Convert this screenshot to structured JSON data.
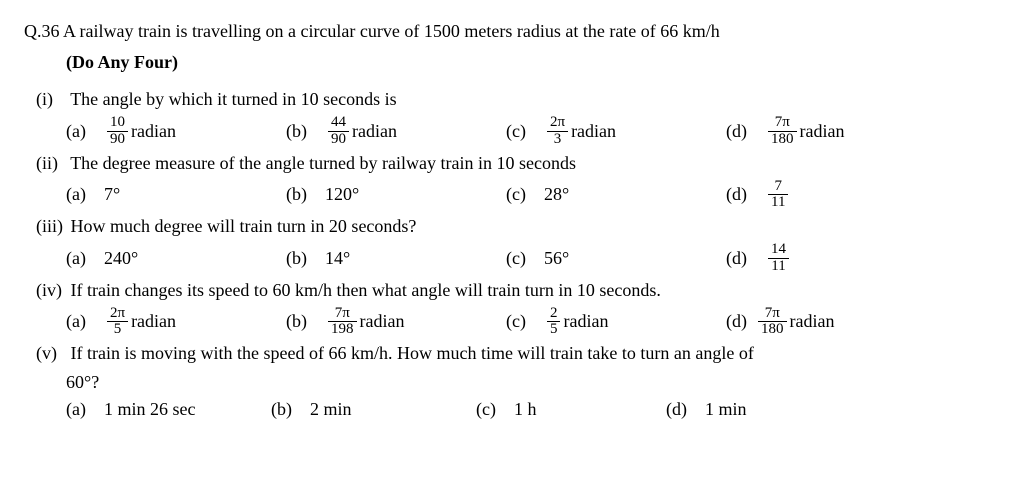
{
  "header": {
    "qnum": "Q.36",
    "text": "A railway train is travelling on a circular curve of 1500 meters radius at the rate of 66 km/h",
    "doany": "(Do Any Four)"
  },
  "parts": {
    "i": {
      "label": "(i)",
      "text": "The angle by which it turned in 10 seconds is",
      "opts": {
        "a": {
          "label": "(a)",
          "num": "10",
          "den": "90",
          "suffix": "radian"
        },
        "b": {
          "label": "(b)",
          "num": "44",
          "den": "90",
          "suffix": "radian"
        },
        "c": {
          "label": "(c)",
          "num": "2π",
          "den": "3",
          "suffix": "radian"
        },
        "d": {
          "label": "(d)",
          "num": "7π",
          "den": "180",
          "suffix": "radian"
        }
      }
    },
    "ii": {
      "label": "(ii)",
      "text": "The degree measure of the angle turned by railway train in 10 seconds",
      "opts": {
        "a": {
          "label": "(a)",
          "val": "7°"
        },
        "b": {
          "label": "(b)",
          "val": "120°"
        },
        "c": {
          "label": "(c)",
          "val": "28°"
        },
        "d": {
          "label": "(d)",
          "num": "7",
          "den": "11"
        }
      }
    },
    "iii": {
      "label": "(iii)",
      "text": "How much degree will train turn in 20 seconds?",
      "opts": {
        "a": {
          "label": "(a)",
          "val": "240°"
        },
        "b": {
          "label": "(b)",
          "val": "14°"
        },
        "c": {
          "label": "(c)",
          "val": "56°"
        },
        "d": {
          "label": "(d)",
          "num": "14",
          "den": "11"
        }
      }
    },
    "iv": {
      "label": "(iv)",
      "text": "If train changes its speed to 60 km/h then what angle will train turn in 10 seconds.",
      "opts": {
        "a": {
          "label": "(a)",
          "num": "2π",
          "den": "5",
          "suffix": "radian"
        },
        "b": {
          "label": "(b)",
          "num": "7π",
          "den": "198",
          "suffix": "radian"
        },
        "c": {
          "label": "(c)",
          "num": "2",
          "den": "5",
          "suffix": "radian"
        },
        "d": {
          "label": "(d)",
          "num": "7π",
          "den": "180",
          "suffix": "radian"
        }
      }
    },
    "v": {
      "label": "(v)",
      "text": "If train is moving with the speed of 66 km/h. How much time will train take to turn an angle of",
      "text2": "60°?",
      "opts": {
        "a": {
          "label": "(a)",
          "val": "1 min 26 sec"
        },
        "b": {
          "label": "(b)",
          "val": "2 min"
        },
        "c": {
          "label": "(c)",
          "val": "1 h"
        },
        "d": {
          "label": "(d)",
          "val": "1 min"
        }
      }
    }
  }
}
